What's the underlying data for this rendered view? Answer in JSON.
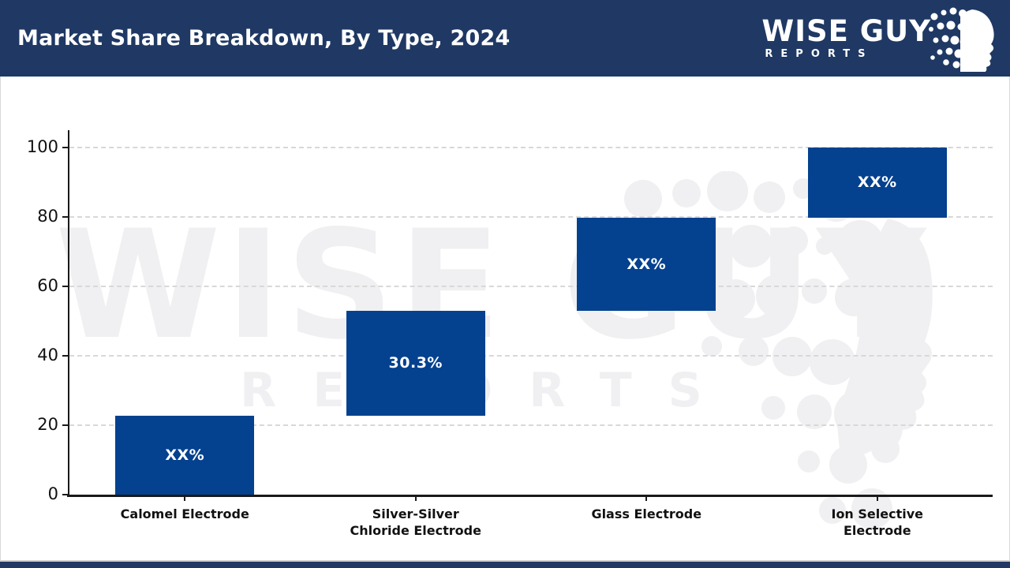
{
  "header": {
    "title": "Market Share Breakdown, By Type, 2024",
    "logo": {
      "wordmark": "WISE GUY",
      "subtitle": "REPORTS"
    }
  },
  "watermark": {
    "line1": "WISE GUY",
    "line2": "REPORTS"
  },
  "colors": {
    "header_bg": "#1f3864",
    "footer_bg": "#1f3864",
    "bar": "#04418f",
    "bar_label": "#ffffff",
    "gridline": "#d8d8d8",
    "axis": "#1a1a1a",
    "watermark": "#f0f0f2",
    "logo_text": "#ffffff"
  },
  "chart_data": {
    "type": "bar",
    "subtype": "waterfall",
    "title": "Market Share Breakdown, By Type, 2024",
    "xlabel": "",
    "ylabel": "",
    "categories": [
      "Calomel Electrode",
      "Silver-Silver\nChloride Electrode",
      "Glass Electrode",
      "Ion Selective\nElectrode"
    ],
    "segments": [
      {
        "category": "Calomel Electrode",
        "start": 0,
        "end": 22.7,
        "label": "XX%"
      },
      {
        "category": "Silver-Silver Chloride Electrode",
        "start": 22.7,
        "end": 53.0,
        "label": "30.3%",
        "value": 30.3
      },
      {
        "category": "Glass Electrode",
        "start": 53.0,
        "end": 79.8,
        "label": "XX%"
      },
      {
        "category": "Ion Selective Electrode",
        "start": 79.8,
        "end": 100,
        "label": "XX%"
      }
    ],
    "yticks": [
      0,
      20,
      40,
      60,
      80,
      100
    ],
    "ylim": [
      0,
      105
    ],
    "grid": "dashed-horizontal",
    "legend": "none"
  }
}
